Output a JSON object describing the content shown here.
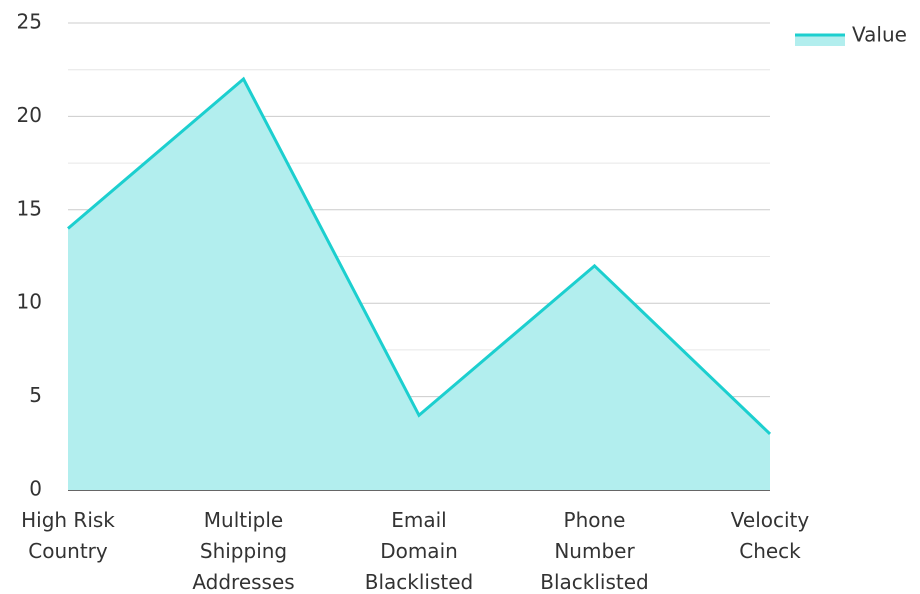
{
  "chart_data": {
    "type": "area",
    "categories": [
      "High Risk Country",
      "Multiple Shipping Addresses",
      "Email Domain Blacklisted",
      "Phone Number Blacklisted",
      "Velocity Check"
    ],
    "series": [
      {
        "name": "Value",
        "color": "#1ccfcf",
        "fill": "#b2eeee",
        "values": [
          14,
          22,
          4,
          12,
          3
        ]
      }
    ],
    "ylim": [
      0,
      25
    ],
    "yticks": [
      0,
      5,
      10,
      15,
      20,
      25
    ],
    "grid": true,
    "legend": "top-right"
  }
}
